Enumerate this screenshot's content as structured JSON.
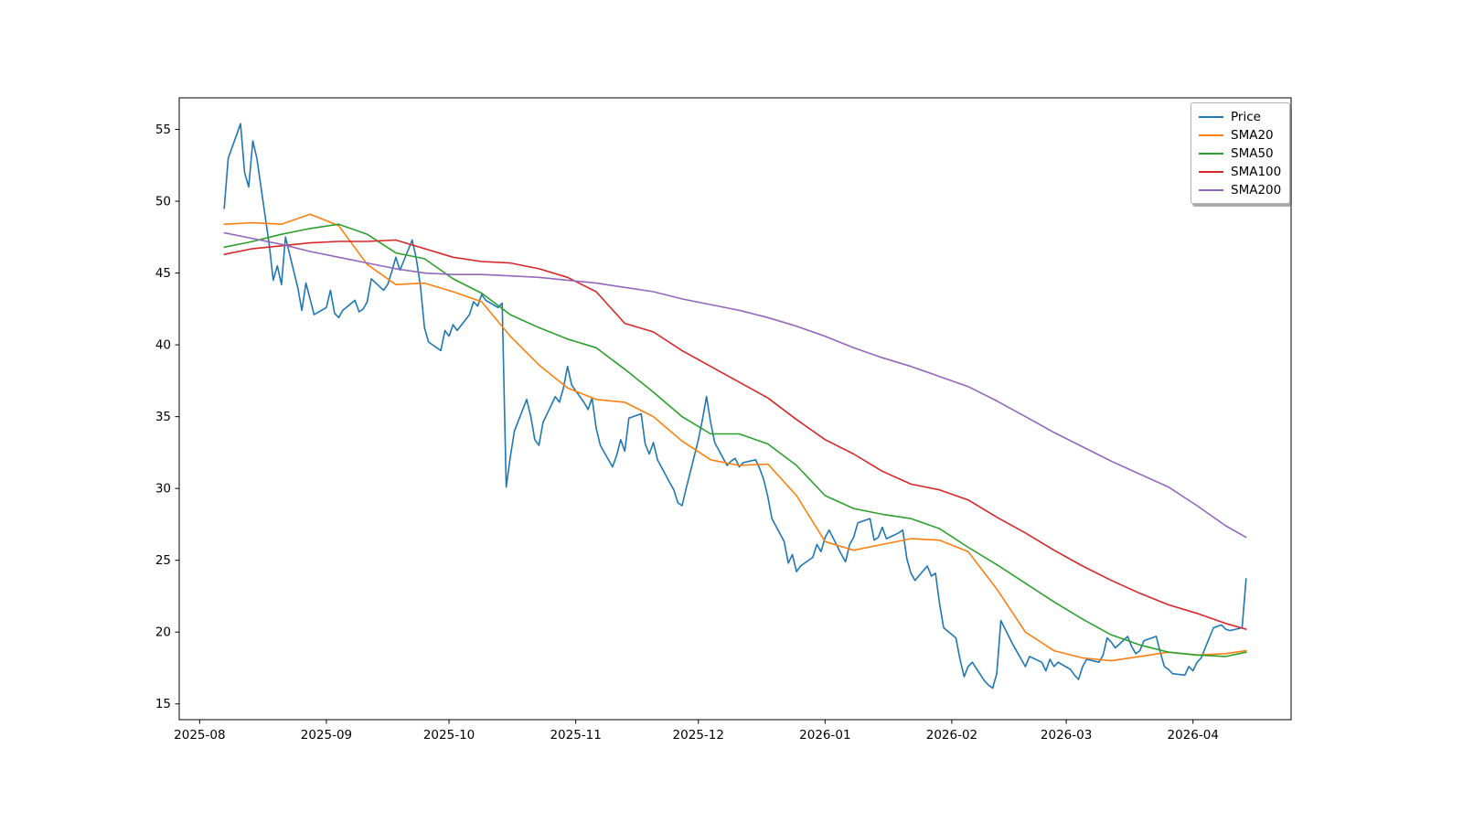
{
  "figure": {
    "background": "#ffffff",
    "spine_color": "#000000",
    "tick_color": "#000000"
  },
  "chart_data": {
    "type": "line",
    "title": "",
    "xlabel": "",
    "ylabel": "",
    "grid": false,
    "legend_position": "upper right",
    "xlim_dates": [
      "2025-07-27",
      "2026-04-25"
    ],
    "ylim": [
      13.9,
      57.2
    ],
    "x_ticks": [
      {
        "label": "2025-08",
        "date": "2025-08-01"
      },
      {
        "label": "2025-09",
        "date": "2025-09-01"
      },
      {
        "label": "2025-10",
        "date": "2025-10-01"
      },
      {
        "label": "2025-11",
        "date": "2025-11-01"
      },
      {
        "label": "2025-12",
        "date": "2025-12-01"
      },
      {
        "label": "2026-01",
        "date": "2026-01-01"
      },
      {
        "label": "2026-02",
        "date": "2026-02-01"
      },
      {
        "label": "2026-03",
        "date": "2026-03-01"
      },
      {
        "label": "2026-04",
        "date": "2026-04-01"
      }
    ],
    "y_ticks": [
      15,
      20,
      25,
      30,
      35,
      40,
      45,
      50,
      55
    ],
    "dates": [
      "2025-08-07",
      "2025-08-08",
      "2025-08-11",
      "2025-08-12",
      "2025-08-13",
      "2025-08-14",
      "2025-08-15",
      "2025-08-18",
      "2025-08-19",
      "2025-08-20",
      "2025-08-21",
      "2025-08-22",
      "2025-08-25",
      "2025-08-26",
      "2025-08-27",
      "2025-08-28",
      "2025-08-29",
      "2025-09-01",
      "2025-09-02",
      "2025-09-03",
      "2025-09-04",
      "2025-09-05",
      "2025-09-08",
      "2025-09-09",
      "2025-09-10",
      "2025-09-11",
      "2025-09-12",
      "2025-09-15",
      "2025-09-16",
      "2025-09-17",
      "2025-09-18",
      "2025-09-19",
      "2025-09-22",
      "2025-09-23",
      "2025-09-24",
      "2025-09-25",
      "2025-09-26",
      "2025-09-29",
      "2025-09-30",
      "2025-10-01",
      "2025-10-02",
      "2025-10-03",
      "2025-10-06",
      "2025-10-07",
      "2025-10-08",
      "2025-10-09",
      "2025-10-10",
      "2025-10-13",
      "2025-10-14",
      "2025-10-15",
      "2025-10-16",
      "2025-10-17",
      "2025-10-20",
      "2025-10-21",
      "2025-10-22",
      "2025-10-23",
      "2025-10-24",
      "2025-10-27",
      "2025-10-28",
      "2025-10-29",
      "2025-10-30",
      "2025-10-31",
      "2025-11-03",
      "2025-11-04",
      "2025-11-05",
      "2025-11-06",
      "2025-11-07",
      "2025-11-10",
      "2025-11-11",
      "2025-11-12",
      "2025-11-13",
      "2025-11-14",
      "2025-11-17",
      "2025-11-18",
      "2025-11-19",
      "2025-11-20",
      "2025-11-21",
      "2025-11-24",
      "2025-11-25",
      "2025-11-26",
      "2025-11-27",
      "2025-11-28",
      "2025-12-01",
      "2025-12-02",
      "2025-12-03",
      "2025-12-04",
      "2025-12-05",
      "2025-12-08",
      "2025-12-09",
      "2025-12-10",
      "2025-12-11",
      "2025-12-12",
      "2025-12-15",
      "2025-12-16",
      "2025-12-17",
      "2025-12-18",
      "2025-12-19",
      "2025-12-22",
      "2025-12-23",
      "2025-12-24",
      "2025-12-25",
      "2025-12-26",
      "2025-12-29",
      "2025-12-30",
      "2025-12-31",
      "2026-01-01",
      "2026-01-02",
      "2026-01-05",
      "2026-01-06",
      "2026-01-07",
      "2026-01-08",
      "2026-01-09",
      "2026-01-12",
      "2026-01-13",
      "2026-01-14",
      "2026-01-15",
      "2026-01-16",
      "2026-01-19",
      "2026-01-20",
      "2026-01-21",
      "2026-01-22",
      "2026-01-23",
      "2026-01-26",
      "2026-01-27",
      "2026-01-28",
      "2026-01-29",
      "2026-01-30",
      "2026-02-02",
      "2026-02-03",
      "2026-02-04",
      "2026-02-05",
      "2026-02-06",
      "2026-02-09",
      "2026-02-10",
      "2026-02-11",
      "2026-02-12",
      "2026-02-13",
      "2026-02-16",
      "2026-02-17",
      "2026-02-18",
      "2026-02-19",
      "2026-02-20",
      "2026-02-23",
      "2026-02-24",
      "2026-02-25",
      "2026-02-26",
      "2026-02-27",
      "2026-03-02",
      "2026-03-03",
      "2026-03-04",
      "2026-03-05",
      "2026-03-06",
      "2026-03-09",
      "2026-03-10",
      "2026-03-11",
      "2026-03-12",
      "2026-03-13",
      "2026-03-16",
      "2026-03-17",
      "2026-03-18",
      "2026-03-19",
      "2026-03-20",
      "2026-03-23",
      "2026-03-24",
      "2026-03-25",
      "2026-03-26",
      "2026-03-27",
      "2026-03-30",
      "2026-03-31",
      "2026-04-01",
      "2026-04-02",
      "2026-04-03",
      "2026-04-06",
      "2026-04-07",
      "2026-04-08",
      "2026-04-09",
      "2026-04-10",
      "2026-04-13",
      "2026-04-14"
    ],
    "sma_sample_index": [
      0,
      5,
      10,
      15,
      20,
      25,
      30,
      35,
      40,
      45,
      50,
      55,
      60,
      65,
      70,
      75,
      80,
      85,
      90,
      95,
      100,
      105,
      110,
      115,
      120,
      125,
      130,
      135,
      140,
      145,
      150,
      155,
      160,
      165,
      170,
      175,
      178
    ],
    "series": [
      {
        "name": "Price",
        "color": "#1f77b4",
        "values": [
          49.5,
          53.0,
          55.4,
          52.0,
          51.0,
          54.2,
          53.0,
          47.0,
          44.5,
          45.5,
          44.2,
          47.5,
          44.0,
          42.4,
          44.3,
          43.2,
          42.1,
          42.6,
          43.8,
          42.2,
          41.9,
          42.4,
          43.1,
          42.3,
          42.5,
          43.0,
          44.6,
          43.8,
          44.2,
          45.1,
          46.1,
          45.2,
          47.3,
          46.0,
          44.1,
          41.2,
          40.2,
          39.6,
          41.0,
          40.6,
          41.4,
          41.0,
          42.1,
          43.0,
          42.7,
          43.5,
          43.1,
          42.6,
          42.9,
          30.1,
          32.2,
          34.0,
          36.2,
          35.0,
          33.4,
          33.0,
          34.6,
          36.4,
          36.0,
          37.0,
          38.5,
          37.2,
          36.0,
          35.5,
          36.3,
          34.2,
          33.0,
          31.5,
          32.3,
          33.4,
          32.6,
          34.9,
          35.2,
          33.1,
          32.4,
          33.2,
          32.0,
          30.4,
          29.9,
          29.0,
          28.8,
          30.0,
          33.4,
          34.8,
          36.4,
          34.6,
          33.2,
          31.6,
          31.9,
          32.1,
          31.5,
          31.8,
          32.0,
          31.4,
          30.6,
          29.4,
          27.9,
          26.3,
          24.8,
          25.4,
          24.2,
          24.6,
          25.2,
          26.1,
          25.6,
          26.6,
          27.1,
          25.4,
          24.9,
          26.1,
          26.6,
          27.6,
          27.9,
          26.4,
          26.6,
          27.3,
          26.5,
          26.9,
          27.1,
          25.1,
          24.1,
          23.6,
          24.6,
          23.9,
          24.1,
          22.0,
          20.3,
          19.6,
          18.1,
          16.9,
          17.6,
          17.9,
          16.6,
          16.3,
          16.1,
          17.1,
          20.8,
          19.1,
          18.6,
          18.1,
          17.6,
          18.3,
          17.9,
          17.3,
          18.1,
          17.6,
          17.9,
          17.4,
          17.0,
          16.7,
          17.6,
          18.1,
          17.9,
          18.4,
          19.6,
          19.3,
          18.9,
          19.7,
          19.0,
          18.5,
          18.7,
          19.4,
          19.7,
          18.6,
          17.6,
          17.4,
          17.1,
          17.0,
          17.6,
          17.3,
          17.9,
          18.2,
          20.3,
          20.4,
          20.5,
          20.2,
          20.1,
          20.3,
          23.7
        ]
      },
      {
        "name": "SMA20",
        "color": "#ff7f0e",
        "sampled": true,
        "values": [
          48.4,
          48.5,
          48.4,
          49.1,
          48.3,
          45.6,
          44.2,
          44.3,
          43.7,
          43.0,
          40.6,
          38.6,
          37.0,
          36.2,
          36.0,
          35.0,
          33.3,
          32.0,
          31.6,
          31.7,
          29.5,
          26.3,
          25.7,
          26.1,
          26.5,
          26.4,
          25.6,
          23.0,
          20.0,
          18.7,
          18.2,
          18.0,
          18.3,
          18.6,
          18.4,
          18.5,
          18.7
        ]
      },
      {
        "name": "SMA50",
        "color": "#2ca02c",
        "sampled": true,
        "values": [
          46.8,
          47.2,
          47.7,
          48.1,
          48.4,
          47.7,
          46.4,
          46.0,
          44.6,
          43.6,
          42.1,
          41.2,
          40.4,
          39.8,
          38.3,
          36.7,
          35.0,
          33.8,
          33.8,
          33.1,
          31.6,
          29.5,
          28.6,
          28.2,
          27.9,
          27.2,
          25.9,
          24.7,
          23.4,
          22.1,
          20.9,
          19.8,
          19.1,
          18.6,
          18.4,
          18.3,
          18.6
        ]
      },
      {
        "name": "SMA100",
        "color": "#d62728",
        "sampled": true,
        "values": [
          46.3,
          46.7,
          46.9,
          47.1,
          47.2,
          47.2,
          47.3,
          46.7,
          46.1,
          45.8,
          45.7,
          45.3,
          44.7,
          43.7,
          41.5,
          40.9,
          39.6,
          38.5,
          37.4,
          36.3,
          34.8,
          33.4,
          32.4,
          31.2,
          30.3,
          29.9,
          29.2,
          28.0,
          26.9,
          25.7,
          24.6,
          23.6,
          22.7,
          21.9,
          21.3,
          20.6,
          20.2
        ]
      },
      {
        "name": "SMA200",
        "color": "#9467bd",
        "sampled": true,
        "values": [
          47.8,
          47.4,
          47.0,
          46.5,
          46.1,
          45.7,
          45.3,
          45.0,
          44.9,
          44.9,
          44.8,
          44.7,
          44.5,
          44.3,
          44.0,
          43.7,
          43.2,
          42.8,
          42.4,
          41.9,
          41.3,
          40.6,
          39.8,
          39.1,
          38.5,
          37.8,
          37.1,
          36.1,
          35.0,
          33.9,
          32.9,
          31.9,
          31.0,
          30.1,
          28.8,
          27.4,
          26.6
        ]
      }
    ]
  }
}
